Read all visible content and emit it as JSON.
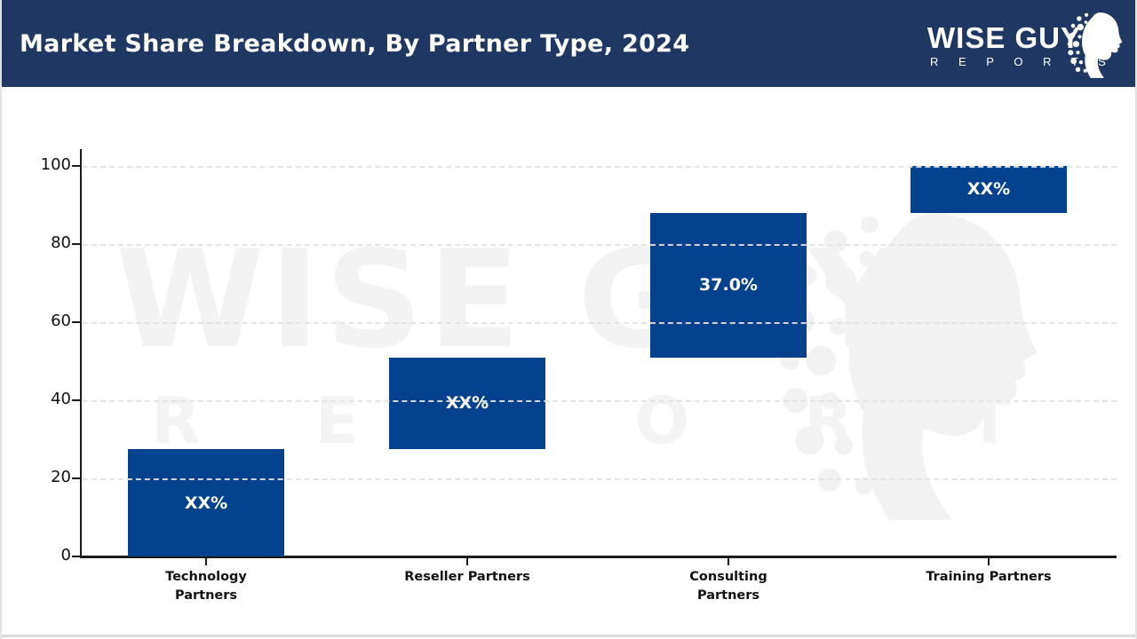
{
  "header": {
    "title": "Market Share Breakdown, By Partner Type, 2024",
    "logo": {
      "line1": "WISE GUY",
      "line2": "R E P O R T S"
    }
  },
  "watermark": {
    "line1": "WISE GUY",
    "line2": "R E P O R T S"
  },
  "colors": {
    "header_bg": "#1f3863",
    "bar": "#05428e",
    "grid": "#e2e2e2",
    "axis": "#1a1a1a",
    "bar_label_text": "#ffffff"
  },
  "chart_data": {
    "type": "bar",
    "variant": "waterfall",
    "title": "Market Share Breakdown, By Partner Type, 2024",
    "categories": [
      "Technology Partners",
      "Reseller Partners",
      "Consulting Partners",
      "Training Partners"
    ],
    "tick_labels": [
      "Technology\nPartners",
      "Reseller Partners",
      "Consulting\nPartners",
      "Training Partners"
    ],
    "segments": [
      {
        "category": "Technology Partners",
        "start": 0,
        "end": 27.5,
        "value": 27.5,
        "label": "XX%"
      },
      {
        "category": "Reseller Partners",
        "start": 27.5,
        "end": 51,
        "value": 23.5,
        "label": "XX%"
      },
      {
        "category": "Consulting Partners",
        "start": 51,
        "end": 88,
        "value": 37.0,
        "label": "37.0%"
      },
      {
        "category": "Training Partners",
        "start": 88,
        "end": 100,
        "value": 12,
        "label": "XX%"
      }
    ],
    "ylim": [
      0,
      100
    ],
    "yticks": [
      0,
      20,
      40,
      60,
      80,
      100
    ],
    "grid": "horizontal dashed",
    "legend": "none",
    "xlabel": "",
    "ylabel": ""
  }
}
